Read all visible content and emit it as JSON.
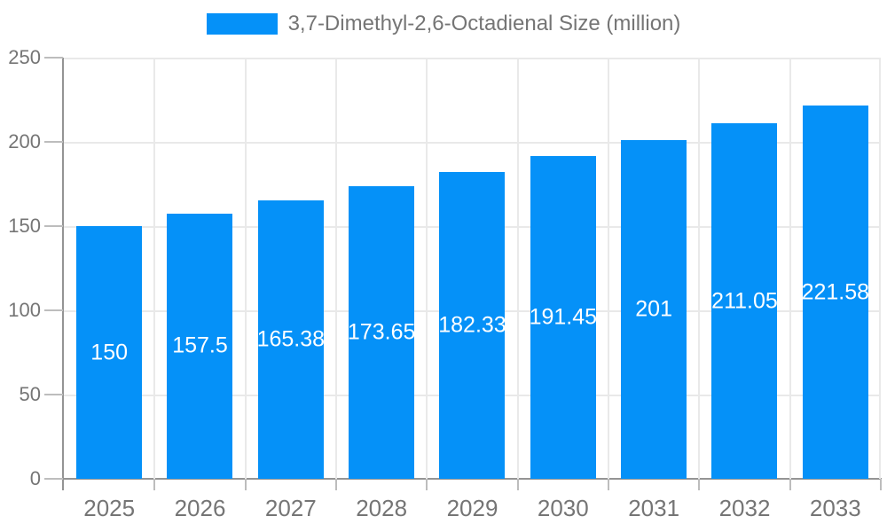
{
  "chart_data": {
    "type": "bar",
    "title": "",
    "legend": "3,7-Dimethyl-2,6-Octadienal Size (million)",
    "legend_position": "top",
    "categories": [
      "2025",
      "2026",
      "2027",
      "2028",
      "2029",
      "2030",
      "2031",
      "2032",
      "2033"
    ],
    "values": [
      150,
      157.5,
      165.38,
      173.65,
      182.33,
      191.45,
      201,
      211.05,
      221.58
    ],
    "bar_labels": [
      "150",
      "157.5",
      "165.38",
      "173.65",
      "182.33",
      "191.45",
      "201",
      "211.05",
      "221.58"
    ],
    "xlabel": "",
    "ylabel": "",
    "ylim": [
      0,
      250
    ],
    "yticks": [
      0,
      50,
      100,
      150,
      200,
      250
    ],
    "grid": true,
    "colors": {
      "bar": "#0591f8",
      "grid": "#e9e9e9",
      "axis": "#949494",
      "tick": "#bdbdbd",
      "text": "#757575",
      "bar_label_text": "#ffffff"
    }
  }
}
